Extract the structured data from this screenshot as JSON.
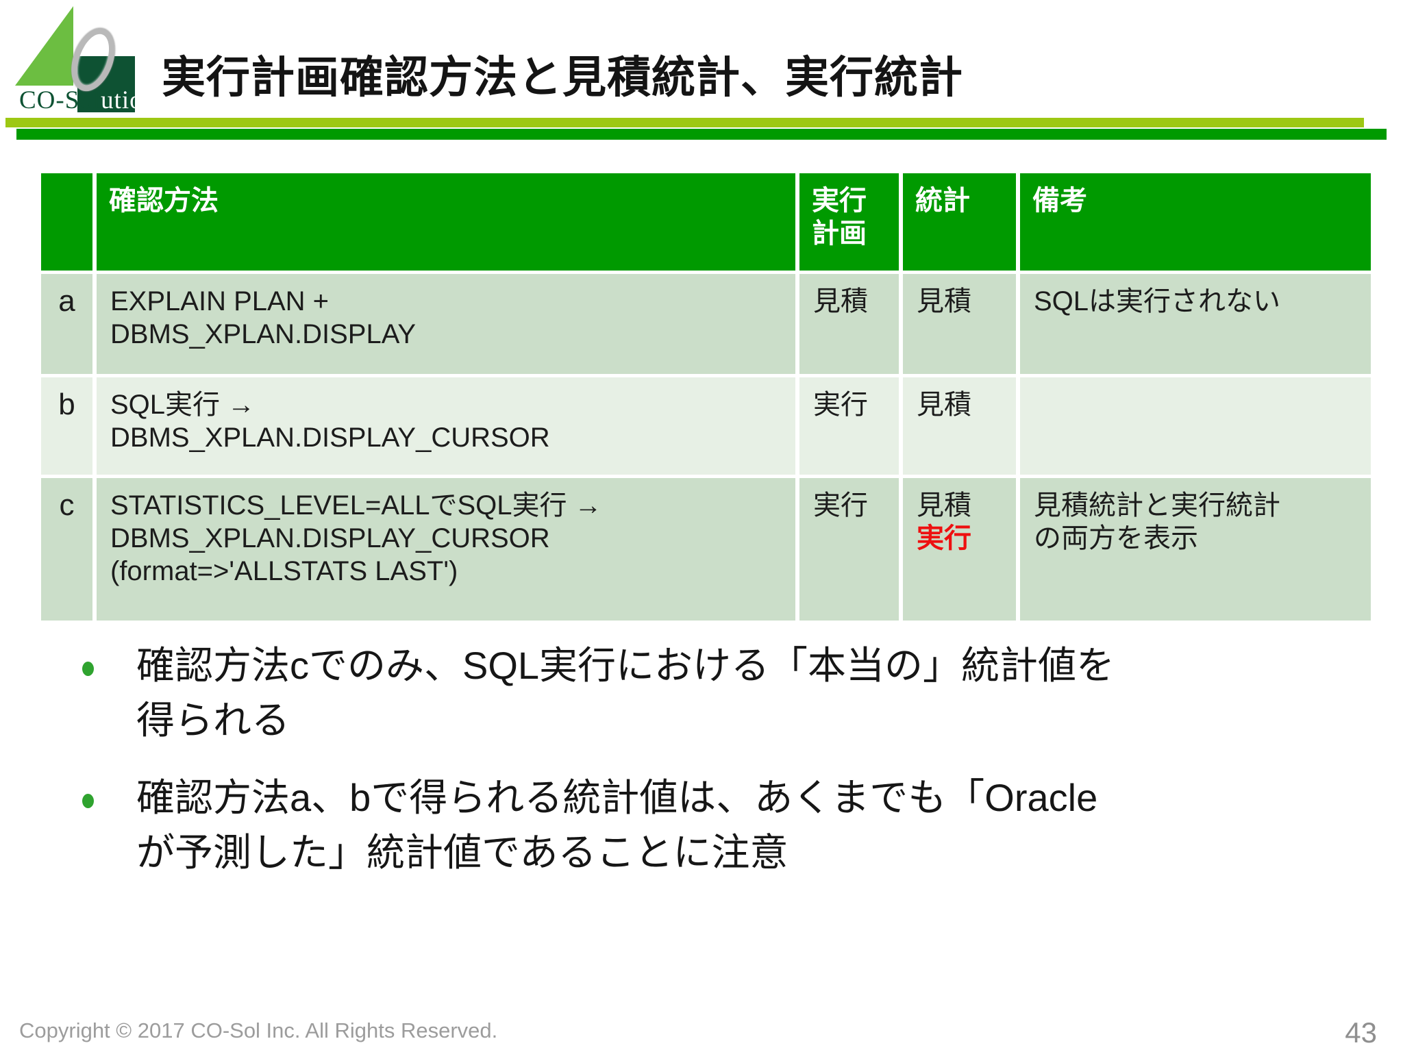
{
  "logo": {
    "text_green": "CO-Sol",
    "text_white": "utions"
  },
  "header": {
    "title": "実行計画確認方法と見積統計、実行統計"
  },
  "table": {
    "columns": {
      "key": "",
      "method": "確認方法",
      "plan": "実行\n計画",
      "stats": "統計",
      "remarks": "備考"
    },
    "rows": [
      {
        "key": "a",
        "method": "EXPLAIN PLAN +\nDBMS_XPLAN.DISPLAY",
        "plan": "見積",
        "stats": "見積",
        "stats_exec": "",
        "remarks": "SQLは実行されない"
      },
      {
        "key": "b",
        "method": "SQL実行 →\nDBMS_XPLAN.DISPLAY_CURSOR",
        "plan": "実行",
        "stats": "見積",
        "stats_exec": "",
        "remarks": ""
      },
      {
        "key": "c",
        "method": "STATISTICS_LEVEL=ALLでSQL実行 →\nDBMS_XPLAN.DISPLAY_CURSOR\n(format=>'ALLSTATS LAST')",
        "plan": "実行",
        "stats": "見積",
        "stats_exec": "実行",
        "remarks": "見積統計と実行統計\nの両方を表示"
      }
    ]
  },
  "bullets": [
    {
      "text": "確認方法cでのみ、SQL実行における「本当の」統計値を\n得られる"
    },
    {
      "text": "確認方法a、bで得られる統計値は、あくまでも「Oracle\nが予測した」統計値であることに注意"
    }
  ],
  "footer": {
    "copyright": "Copyright © 2017 CO-Sol Inc. All Rights Reserved.",
    "page_number": "43"
  },
  "colors": {
    "header_green": "#009A00",
    "bar_light_green": "#9DC813",
    "bar_dark_green": "#009A00",
    "row_odd": "#CBDEC9",
    "row_even": "#E7F0E5",
    "exec_red": "#EE1010",
    "logo_triangle_green": "#6CBE41",
    "logo_square_green": "#0E5233",
    "footer_gray": "#9C9C9C"
  }
}
